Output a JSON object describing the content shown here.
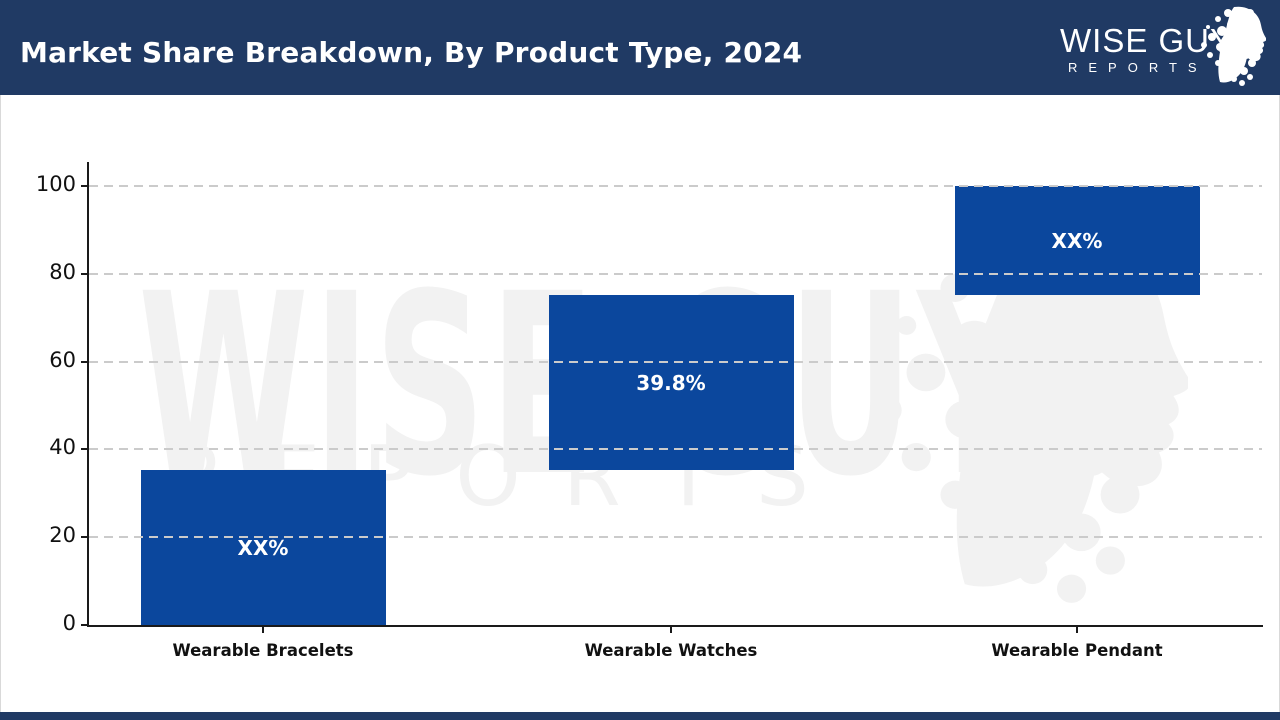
{
  "header": {
    "title": "Market Share Breakdown, By Product Type, 2024",
    "logo": {
      "line1": "WISE GUY",
      "line2": "REPORTS"
    },
    "bg_color": "#203a64",
    "text_color": "#ffffff"
  },
  "watermark": {
    "line1": "WISE GUY",
    "line2": "R E P O R T S"
  },
  "chart_data": {
    "type": "bar",
    "subtype": "waterfall",
    "title": "Market Share Breakdown, By Product Type, 2024",
    "categories": [
      "Wearable Bracelets",
      "Wearable Watches",
      "Wearable Pendant"
    ],
    "values": [
      35.3,
      39.8,
      24.9
    ],
    "segments": [
      {
        "category": "Wearable Bracelets",
        "start": 0,
        "end": 35.3,
        "label": "XX%"
      },
      {
        "category": "Wearable Watches",
        "start": 35.3,
        "end": 75.1,
        "label": "39.8%"
      },
      {
        "category": "Wearable Pendant",
        "start": 75.1,
        "end": 100,
        "label": "XX%"
      }
    ],
    "value_labels": [
      "XX%",
      "39.8%",
      "XX%"
    ],
    "ylim": [
      0,
      100
    ],
    "yticks": [
      0,
      20,
      40,
      60,
      80,
      100
    ],
    "grid": "horizontal-dashed",
    "legend": "none",
    "bar_color": "#0b479d",
    "value_label_color": "#ffffff",
    "axis_color": "#1a1a1a",
    "gridline_color": "#cccccc"
  },
  "footer": {
    "bg_color": "#203a64"
  }
}
